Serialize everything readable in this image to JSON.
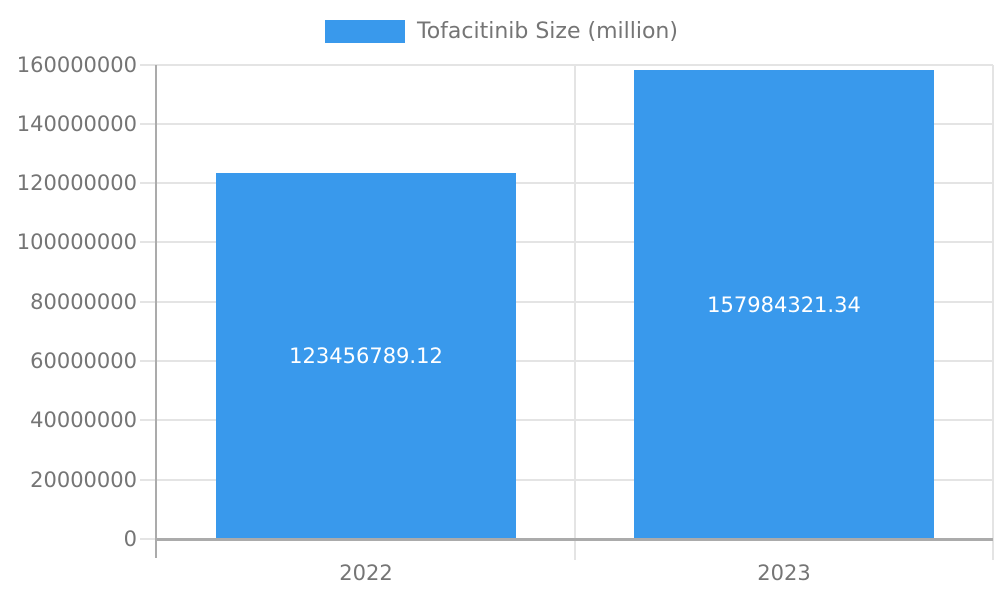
{
  "legend": {
    "label": "Tofacitinib Size (million)"
  },
  "chart_data": {
    "type": "bar",
    "title": "Tofacitinib Size (million)",
    "legend_position": "top-center",
    "categories": [
      "2022",
      "2023"
    ],
    "series": [
      {
        "name": "Tofacitinib Size (million)",
        "values": [
          123456789.12,
          157984321.34
        ],
        "color": "#3999EC"
      }
    ],
    "data_labels": [
      "123456789.12",
      "157984321.34"
    ],
    "data_label_color": "#FFFFFF",
    "xlabel": "",
    "ylabel": "",
    "ylim": [
      0,
      160000000
    ],
    "ytick_interval": 20000000,
    "ytick_labels": [
      "0",
      "20000000",
      "40000000",
      "60000000",
      "80000000",
      "100000000",
      "120000000",
      "140000000",
      "160000000"
    ],
    "grid": true,
    "colors": {
      "bar": "#3999EC",
      "axis": "#ABABAB",
      "gridline": "#E4E4E4",
      "tick_label": "#757575",
      "legend_text": "#757575"
    }
  }
}
